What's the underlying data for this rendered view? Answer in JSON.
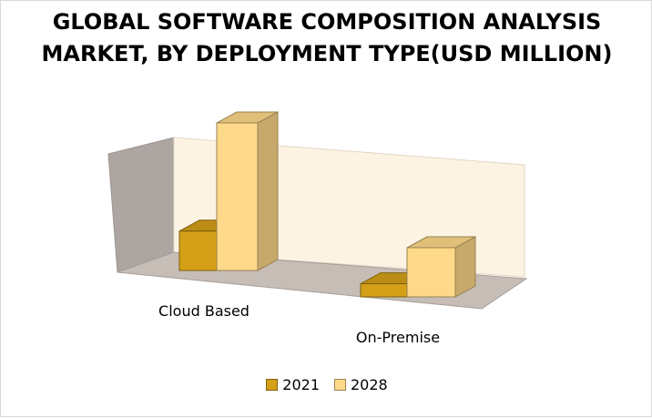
{
  "chart_data": {
    "type": "bar",
    "title": "GLOBAL  SOFTWARE COMPOSITION ANALYSIS MARKET, BY  DEPLOYMENT TYPE(USD MILLION)",
    "categories": [
      "Cloud Based",
      "On-Premise"
    ],
    "series": [
      {
        "name": "2021",
        "values": [
          240,
          80
        ],
        "color": "#d4a017"
      },
      {
        "name": "2028",
        "values": [
          900,
          300
        ],
        "color": "#ffd98a"
      }
    ],
    "xlabel": "",
    "ylabel": "",
    "ylim": [
      0,
      1000
    ],
    "grid": false,
    "legend_position": "bottom",
    "style": "3d-clustered-column"
  }
}
